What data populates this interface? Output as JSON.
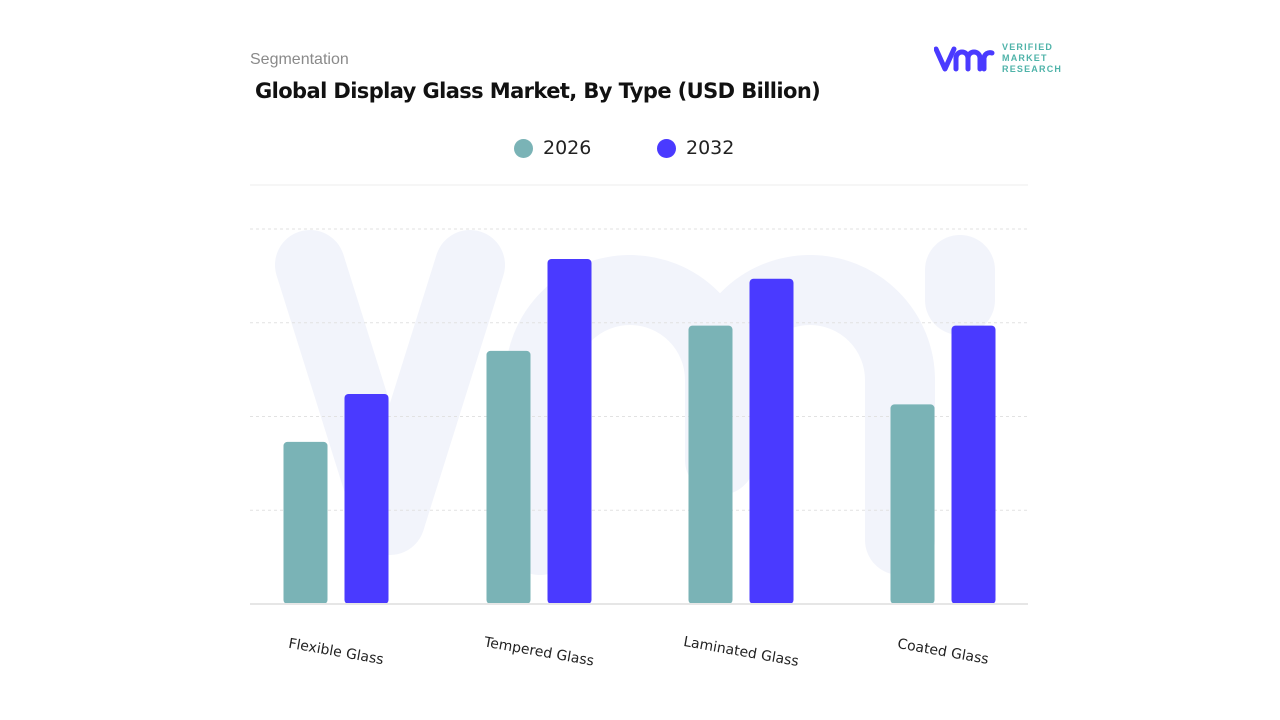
{
  "header": {
    "segment_label": "Segmentation",
    "logo_text": [
      "VERIFIED",
      "MARKET",
      "RESEARCH"
    ]
  },
  "chart_data": {
    "type": "bar",
    "title": "Global Display Glass Market, By Type (USD Billion)",
    "categories": [
      "Flexible Glass",
      "Tempered Glass",
      "Laminated Glass",
      "Coated Glass"
    ],
    "series": [
      {
        "name": "2026",
        "color": "#7ab3b6",
        "values": [
          1.73,
          2.7,
          2.97,
          2.13
        ]
      },
      {
        "name": "2032",
        "color": "#4a3aff",
        "values": [
          2.24,
          3.68,
          3.47,
          2.97
        ]
      }
    ],
    "ylim": [
      0,
      4
    ],
    "y_tick_labels_shown": false,
    "grid": true,
    "legend_placement": "top-center",
    "xlabel": "",
    "ylabel": ""
  }
}
